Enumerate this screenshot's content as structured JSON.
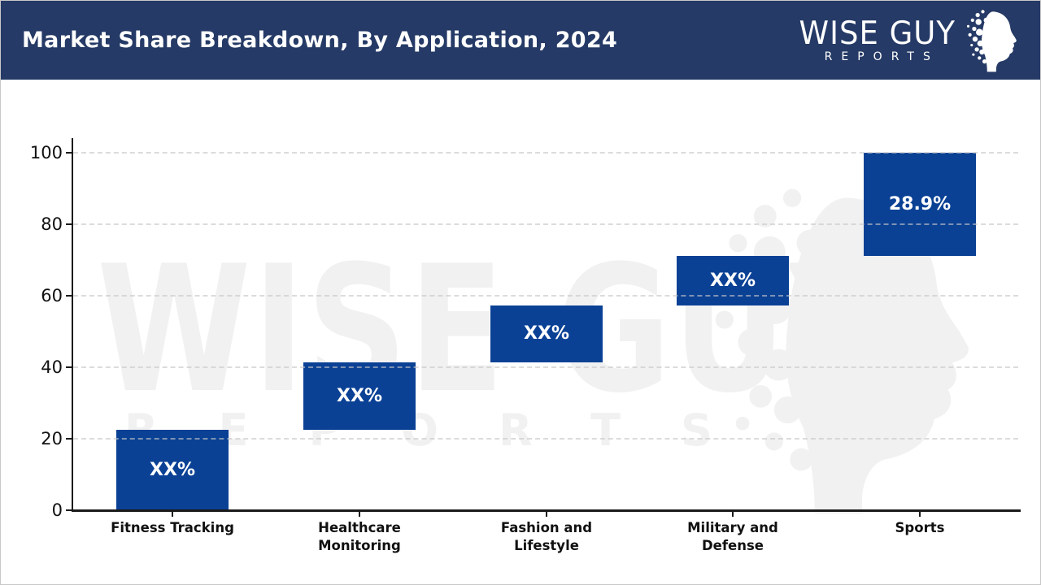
{
  "header": {
    "title": "Market Share Breakdown, By Application, 2024",
    "logo": {
      "line1": "WISE GUY",
      "line2": "REPORTS"
    }
  },
  "watermark": {
    "line1": "WISE GUY",
    "line2": "REPORTS"
  },
  "colors": {
    "header_bg": "#253a66",
    "bar": "#0a4195",
    "bar_label": "#ffffff",
    "grid": "#dddddd",
    "axis": "#1a1a1a",
    "watermark": "#f1f1f2"
  },
  "chart_data": {
    "type": "bar",
    "subtype": "waterfall",
    "title": "Market Share Breakdown, By Application, 2024",
    "categories": [
      "Fitness Tracking",
      "Healthcare\nMonitoring",
      "Fashion and\nLifestyle",
      "Military and\nDefense",
      "Sports"
    ],
    "segments": [
      {
        "category": "Fitness Tracking",
        "start": 0,
        "end": 22.5,
        "label": "XX%"
      },
      {
        "category": "Healthcare Monitoring",
        "start": 22.5,
        "end": 41.4,
        "label": "XX%"
      },
      {
        "category": "Fashion and Lifestyle",
        "start": 41.4,
        "end": 57.3,
        "label": "XX%"
      },
      {
        "category": "Military and Defense",
        "start": 57.3,
        "end": 71.1,
        "label": "XX%"
      },
      {
        "category": "Sports",
        "start": 71.1,
        "end": 100,
        "label": "28.9%"
      }
    ],
    "xlabel": "",
    "ylabel": "",
    "ylim": [
      0,
      100
    ],
    "yticks": [
      0,
      20,
      40,
      60,
      80,
      100
    ],
    "grid": "dashed-horizontal",
    "legend": null
  }
}
